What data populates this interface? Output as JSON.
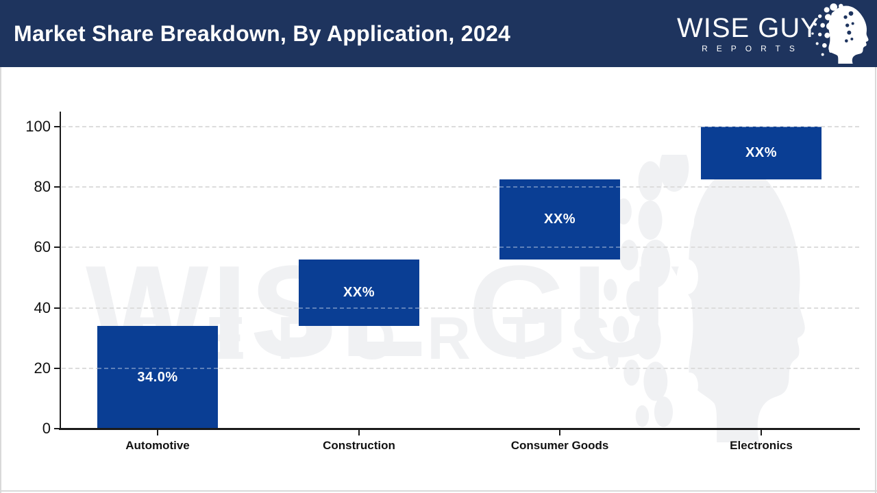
{
  "header": {
    "title": "Market Share Breakdown, By Application, 2024",
    "logo": {
      "line1": "WISE GUY",
      "line2": "REPORTS"
    }
  },
  "watermark": {
    "line1": "WISE GUY",
    "line2": "REPORTS"
  },
  "colors": {
    "header_bg": "#1e345e",
    "bar_fill": "#0a3e94",
    "bar_label": "#ffffff",
    "gridline": "#dcdcdc",
    "axis": "#1a1a1a",
    "tick_label": "#111111",
    "watermark": "#f0f1f3",
    "frame_border": "#d9d9d9"
  },
  "chart_data": {
    "type": "bar",
    "subtype": "waterfall",
    "title": "Market Share Breakdown, By Application, 2024",
    "categories": [
      "Automotive",
      "Construction",
      "Consumer Goods",
      "Electronics"
    ],
    "segments": [
      {
        "category": "Automotive",
        "start": 0,
        "end": 34,
        "label": "34.0%"
      },
      {
        "category": "Construction",
        "start": 34,
        "end": 56,
        "label": "XX%"
      },
      {
        "category": "Consumer Goods",
        "start": 56,
        "end": 82.5,
        "label": "XX%"
      },
      {
        "category": "Electronics",
        "start": 82.5,
        "end": 100,
        "label": "XX%"
      }
    ],
    "yticks": [
      0,
      20,
      40,
      60,
      80,
      100
    ],
    "ylim": [
      0,
      105
    ],
    "xlabel": "",
    "ylabel": "",
    "grid": "horizontal-dashed",
    "legend": null
  }
}
